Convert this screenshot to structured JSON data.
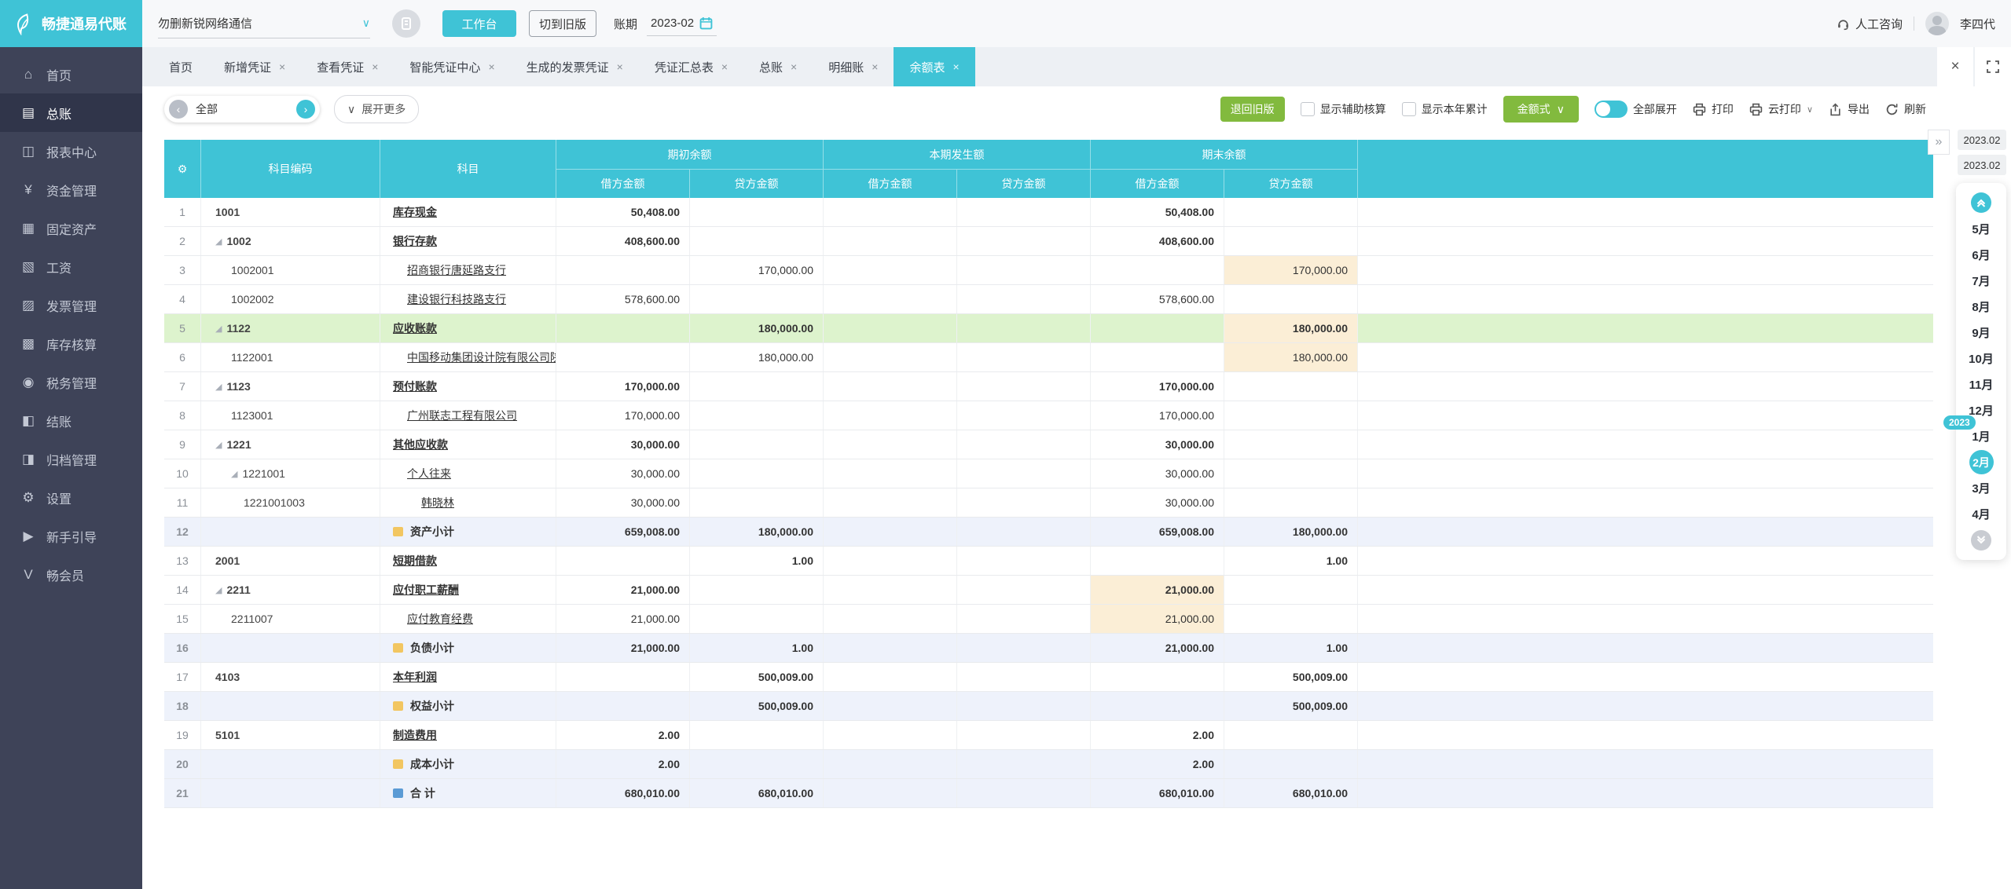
{
  "colors": {
    "accent_cyan": "#3fc3d6",
    "button_green": "#82ba3e",
    "row_selected_green": "#ddf3cd",
    "cell_highlight_orange": "#fbeed6",
    "subtotal_row_blue": "#eef2fb",
    "sidebar_dark": "#3e4358"
  },
  "topbar": {
    "logo_text": "畅捷通易代账",
    "company": "勿删新锐网络通信",
    "workbench_label": "工作台",
    "switch_old_label": "切到旧版",
    "period_label": "账期",
    "period_value": "2023-02",
    "support_label": "人工咨询",
    "user_name": "李四代"
  },
  "sidebar": {
    "items": [
      {
        "key": "home",
        "icon": "home-icon",
        "glyph": "⌂",
        "label": "首页",
        "active": false
      },
      {
        "key": "general-ledger",
        "icon": "ledger-icon",
        "glyph": "▤",
        "label": "总账",
        "active": true
      },
      {
        "key": "report-center",
        "icon": "report-icon",
        "glyph": "◫",
        "label": "报表中心",
        "active": false
      },
      {
        "key": "funds",
        "icon": "money-bag-icon",
        "glyph": "¥",
        "label": "资金管理",
        "active": false
      },
      {
        "key": "fixed-assets",
        "icon": "building-icon",
        "glyph": "▦",
        "label": "固定资产",
        "active": false
      },
      {
        "key": "salary",
        "icon": "calculator-icon",
        "glyph": "▧",
        "label": "工资",
        "active": false
      },
      {
        "key": "invoice",
        "icon": "invoice-icon",
        "glyph": "▨",
        "label": "发票管理",
        "active": false
      },
      {
        "key": "inventory",
        "icon": "warehouse-icon",
        "glyph": "▩",
        "label": "库存核算",
        "active": false
      },
      {
        "key": "tax",
        "icon": "tax-seal-icon",
        "glyph": "◉",
        "label": "税务管理",
        "active": false
      },
      {
        "key": "closing",
        "icon": "book-check-icon",
        "glyph": "◧",
        "label": "结账",
        "active": false
      },
      {
        "key": "archive",
        "icon": "archive-box-icon",
        "glyph": "◨",
        "label": "归档管理",
        "active": false
      },
      {
        "key": "settings",
        "icon": "gear-icon",
        "glyph": "⚙",
        "label": "设置",
        "active": false
      },
      {
        "key": "guide",
        "icon": "play-tutorial-icon",
        "glyph": "▶",
        "label": "新手引导",
        "active": false
      },
      {
        "key": "member",
        "icon": "vip-v-icon",
        "glyph": "V",
        "label": "畅会员",
        "active": false
      }
    ]
  },
  "tabs": {
    "items": [
      {
        "label": "首页",
        "closable": false,
        "active": false
      },
      {
        "label": "新增凭证",
        "closable": true,
        "active": false
      },
      {
        "label": "查看凭证",
        "closable": true,
        "active": false
      },
      {
        "label": "智能凭证中心",
        "closable": true,
        "active": false
      },
      {
        "label": "生成的发票凭证",
        "closable": true,
        "active": false
      },
      {
        "label": "凭证汇总表",
        "closable": true,
        "active": false
      },
      {
        "label": "总账",
        "closable": true,
        "active": false
      },
      {
        "label": "明细账",
        "closable": true,
        "active": false
      },
      {
        "label": "余额表",
        "closable": true,
        "active": true
      }
    ]
  },
  "toolbar": {
    "scope_value": "全部",
    "expand_more_label": "展开更多",
    "back_old_label": "退回旧版",
    "show_aux_label": "显示辅助核算",
    "show_ytd_label": "显示本年累计",
    "amount_style_label": "金额式",
    "expand_all_label": "全部展开",
    "print_label": "打印",
    "cloud_print_label": "云打印",
    "export_label": "导出",
    "refresh_label": "刷新"
  },
  "table": {
    "col_groups": [
      "期初余额",
      "本期发生额",
      "期末余额"
    ],
    "headers": {
      "code": "科目编码",
      "subject": "科目",
      "debit": "借方金额",
      "credit": "贷方金额"
    },
    "rows": [
      {
        "num": "1",
        "code": "1001",
        "subject": "库存现金",
        "lvl": 1,
        "bold": true,
        "tri": false,
        "type": "",
        "icon": "",
        "v": [
          "50,408.00",
          "",
          "",
          "",
          "50,408.00",
          ""
        ],
        "hl": []
      },
      {
        "num": "2",
        "code": "1002",
        "subject": "银行存款",
        "lvl": 1,
        "bold": true,
        "tri": true,
        "type": "",
        "icon": "",
        "v": [
          "408,600.00",
          "",
          "",
          "",
          "408,600.00",
          ""
        ],
        "hl": []
      },
      {
        "num": "3",
        "code": "1002001",
        "subject": "招商银行唐延路支行",
        "lvl": 2,
        "bold": false,
        "tri": false,
        "type": "",
        "icon": "",
        "v": [
          "",
          "170,000.00",
          "",
          "",
          "",
          "170,000.00"
        ],
        "hl": [
          5
        ]
      },
      {
        "num": "4",
        "code": "1002002",
        "subject": "建设银行科技路支行",
        "lvl": 2,
        "bold": false,
        "tri": false,
        "type": "",
        "icon": "",
        "v": [
          "578,600.00",
          "",
          "",
          "",
          "578,600.00",
          ""
        ],
        "hl": []
      },
      {
        "num": "5",
        "code": "1122",
        "subject": "应收账款",
        "lvl": 1,
        "bold": true,
        "tri": true,
        "type": "selected",
        "icon": "",
        "v": [
          "",
          "180,000.00",
          "",
          "",
          "",
          "180,000.00"
        ],
        "hl": [
          5
        ]
      },
      {
        "num": "6",
        "code": "1122001",
        "subject": "中国移动集团设计院有限公司陕",
        "lvl": 2,
        "bold": false,
        "tri": false,
        "type": "",
        "icon": "",
        "v": [
          "",
          "180,000.00",
          "",
          "",
          "",
          "180,000.00"
        ],
        "hl": [
          5
        ]
      },
      {
        "num": "7",
        "code": "1123",
        "subject": "预付账款",
        "lvl": 1,
        "bold": true,
        "tri": true,
        "type": "",
        "icon": "",
        "v": [
          "170,000.00",
          "",
          "",
          "",
          "170,000.00",
          ""
        ],
        "hl": []
      },
      {
        "num": "8",
        "code": "1123001",
        "subject": "广州联志工程有限公司",
        "lvl": 2,
        "bold": false,
        "tri": false,
        "type": "",
        "icon": "",
        "v": [
          "170,000.00",
          "",
          "",
          "",
          "170,000.00",
          ""
        ],
        "hl": []
      },
      {
        "num": "9",
        "code": "1221",
        "subject": "其他应收款",
        "lvl": 1,
        "bold": true,
        "tri": true,
        "type": "",
        "icon": "",
        "v": [
          "30,000.00",
          "",
          "",
          "",
          "30,000.00",
          ""
        ],
        "hl": []
      },
      {
        "num": "10",
        "code": "1221001",
        "subject": "个人往来",
        "lvl": 2,
        "bold": false,
        "tri": true,
        "type": "",
        "icon": "",
        "v": [
          "30,000.00",
          "",
          "",
          "",
          "30,000.00",
          ""
        ],
        "hl": []
      },
      {
        "num": "11",
        "code": "1221001003",
        "subject": "韩晓林",
        "lvl": 3,
        "bold": false,
        "tri": false,
        "type": "",
        "icon": "",
        "v": [
          "30,000.00",
          "",
          "",
          "",
          "30,000.00",
          ""
        ],
        "hl": []
      },
      {
        "num": "12",
        "code": "",
        "subject": "资产小计",
        "lvl": 1,
        "bold": true,
        "tri": false,
        "type": "subtotal",
        "icon": "folder",
        "v": [
          "659,008.00",
          "180,000.00",
          "",
          "",
          "659,008.00",
          "180,000.00"
        ],
        "hl": []
      },
      {
        "num": "13",
        "code": "2001",
        "subject": "短期借款",
        "lvl": 1,
        "bold": true,
        "tri": false,
        "type": "",
        "icon": "",
        "v": [
          "",
          "1.00",
          "",
          "",
          "",
          "1.00"
        ],
        "hl": []
      },
      {
        "num": "14",
        "code": "2211",
        "subject": "应付职工薪酬",
        "lvl": 1,
        "bold": true,
        "tri": true,
        "type": "",
        "icon": "",
        "v": [
          "21,000.00",
          "",
          "",
          "",
          "21,000.00",
          ""
        ],
        "hl": [
          4
        ]
      },
      {
        "num": "15",
        "code": "2211007",
        "subject": "应付教育经费",
        "lvl": 2,
        "bold": false,
        "tri": false,
        "type": "",
        "icon": "",
        "v": [
          "21,000.00",
          "",
          "",
          "",
          "21,000.00",
          ""
        ],
        "hl": [
          4
        ]
      },
      {
        "num": "16",
        "code": "",
        "subject": "负债小计",
        "lvl": 1,
        "bold": true,
        "tri": false,
        "type": "subtotal",
        "icon": "folder",
        "v": [
          "21,000.00",
          "1.00",
          "",
          "",
          "21,000.00",
          "1.00"
        ],
        "hl": []
      },
      {
        "num": "17",
        "code": "4103",
        "subject": "本年利润",
        "lvl": 1,
        "bold": true,
        "tri": false,
        "type": "",
        "icon": "",
        "v": [
          "",
          "500,009.00",
          "",
          "",
          "",
          "500,009.00"
        ],
        "hl": []
      },
      {
        "num": "18",
        "code": "",
        "subject": "权益小计",
        "lvl": 1,
        "bold": true,
        "tri": false,
        "type": "subtotal",
        "icon": "folder",
        "v": [
          "",
          "500,009.00",
          "",
          "",
          "",
          "500,009.00"
        ],
        "hl": []
      },
      {
        "num": "19",
        "code": "5101",
        "subject": "制造费用",
        "lvl": 1,
        "bold": true,
        "tri": false,
        "type": "",
        "icon": "",
        "v": [
          "2.00",
          "",
          "",
          "",
          "2.00",
          ""
        ],
        "hl": []
      },
      {
        "num": "20",
        "code": "",
        "subject": "成本小计",
        "lvl": 1,
        "bold": true,
        "tri": false,
        "type": "subtotal",
        "icon": "folder",
        "v": [
          "2.00",
          "",
          "",
          "",
          "2.00",
          ""
        ],
        "hl": []
      },
      {
        "num": "21",
        "code": "",
        "subject": "合 计",
        "lvl": 1,
        "bold": true,
        "tri": false,
        "type": "total",
        "icon": "blue",
        "v": [
          "680,010.00",
          "680,010.00",
          "",
          "",
          "680,010.00",
          "680,010.00"
        ],
        "hl": []
      }
    ]
  },
  "period_panel": {
    "from": "2023.02",
    "to": "2023.02",
    "months": [
      {
        "label": "5月"
      },
      {
        "label": "6月"
      },
      {
        "label": "7月"
      },
      {
        "label": "8月"
      },
      {
        "label": "9月"
      },
      {
        "label": "10月"
      },
      {
        "label": "11月"
      },
      {
        "label": "12月"
      },
      {
        "label": "1月",
        "badge": "2023"
      },
      {
        "label": "2月",
        "selected": true
      },
      {
        "label": "3月"
      },
      {
        "label": "4月"
      }
    ]
  }
}
